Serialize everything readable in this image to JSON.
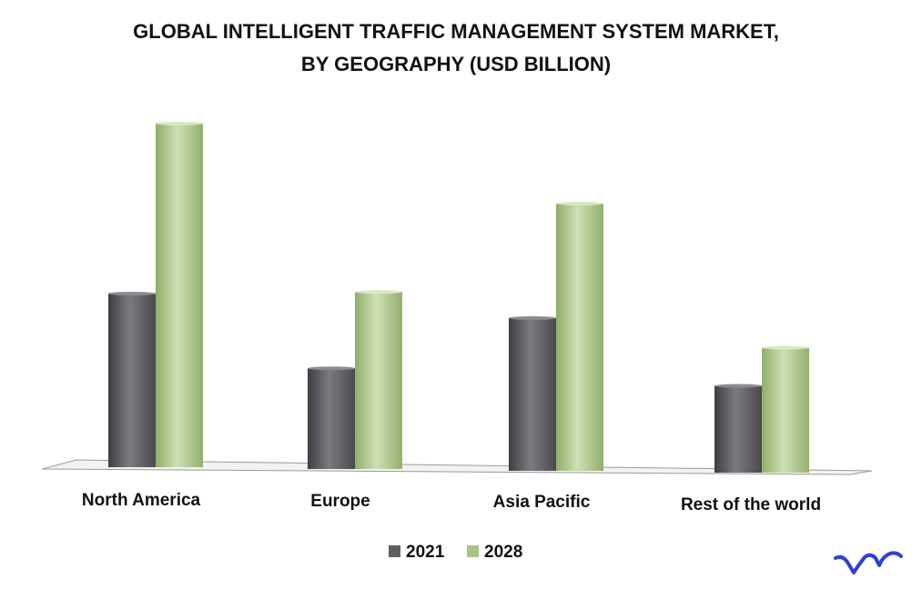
{
  "chart_data": {
    "type": "bar",
    "title": [
      "GLOBAL INTELLIGENT TRAFFIC MANAGEMENT SYSTEM MARKET,",
      "BY GEOGRAPHY (USD BILLION)"
    ],
    "categories": [
      "North America",
      "Europe",
      "Asia Pacific",
      "Rest of the world"
    ],
    "series": [
      {
        "name": "2021",
        "values": [
          5.0,
          2.9,
          4.4,
          2.5
        ]
      },
      {
        "name": "2028",
        "values": [
          9.9,
          5.1,
          7.7,
          3.6
        ]
      }
    ],
    "ylim": [
      0,
      10
    ],
    "grid": false,
    "legend": "bottom-center",
    "colors": {
      "2021": "#5f5f63",
      "2028": "#a9c38a"
    }
  },
  "brand": {
    "logo_text": "vmr",
    "color": "#2f3fd8"
  }
}
